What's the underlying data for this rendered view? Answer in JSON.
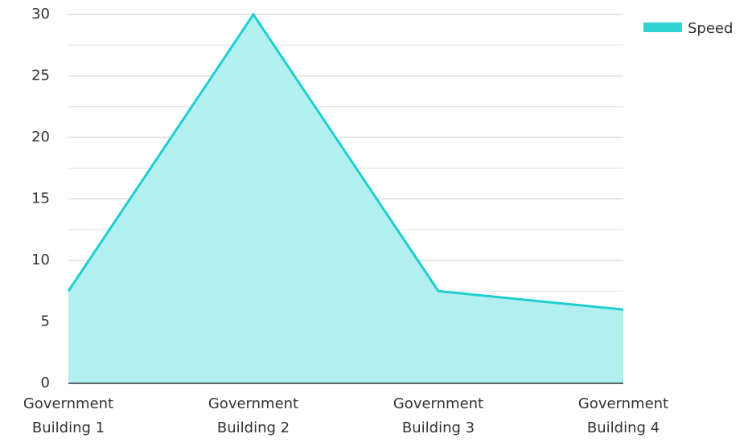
{
  "chart_data": {
    "type": "area",
    "categories_lines": [
      [
        "Government",
        "Building 1"
      ],
      [
        "Government",
        "Building 2"
      ],
      [
        "Government",
        "Building 3"
      ],
      [
        "Government",
        "Building 4"
      ]
    ],
    "series": [
      {
        "name": "Speed",
        "values": [
          7.5,
          30,
          7.5,
          6
        ]
      }
    ],
    "ylim": [
      0,
      30
    ],
    "yticks": [
      0,
      5,
      10,
      15,
      20,
      25,
      30
    ],
    "minor_gridlines": true,
    "grid": true,
    "legend_position": "top-right",
    "colors": {
      "line": "#1fcfcf",
      "fill": "#b2efef",
      "legend_swatch": "#2fd3d3",
      "grid": "#cccccc",
      "minor_grid": "#e6e6e6",
      "axis": "#333333"
    }
  }
}
